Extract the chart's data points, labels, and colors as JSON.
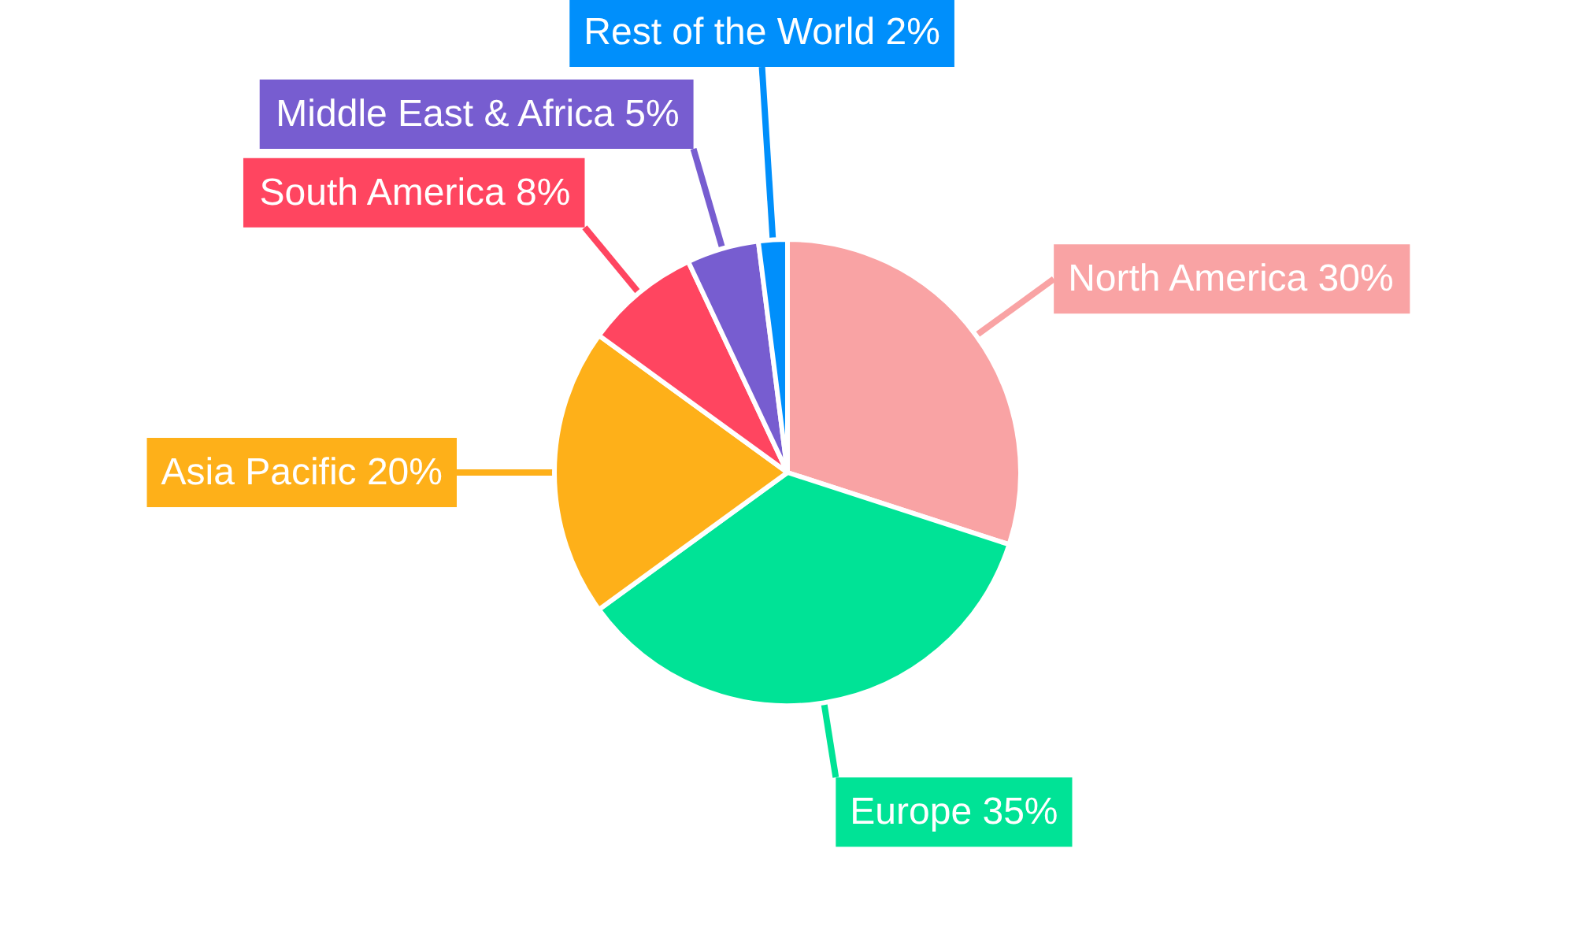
{
  "chart_data": {
    "type": "pie",
    "categories": [
      "North America",
      "Europe",
      "Asia Pacific",
      "South America",
      "Middle East & Africa",
      "Rest of the World"
    ],
    "values": [
      30,
      35,
      20,
      8,
      5,
      2
    ],
    "colors": [
      "#f9a3a4",
      "#00e396",
      "#feb019",
      "#ff4560",
      "#775dd0",
      "#008ffb"
    ],
    "value_labels": [
      "30%",
      "35%",
      "20%",
      "8%",
      "5%",
      "2%"
    ]
  }
}
